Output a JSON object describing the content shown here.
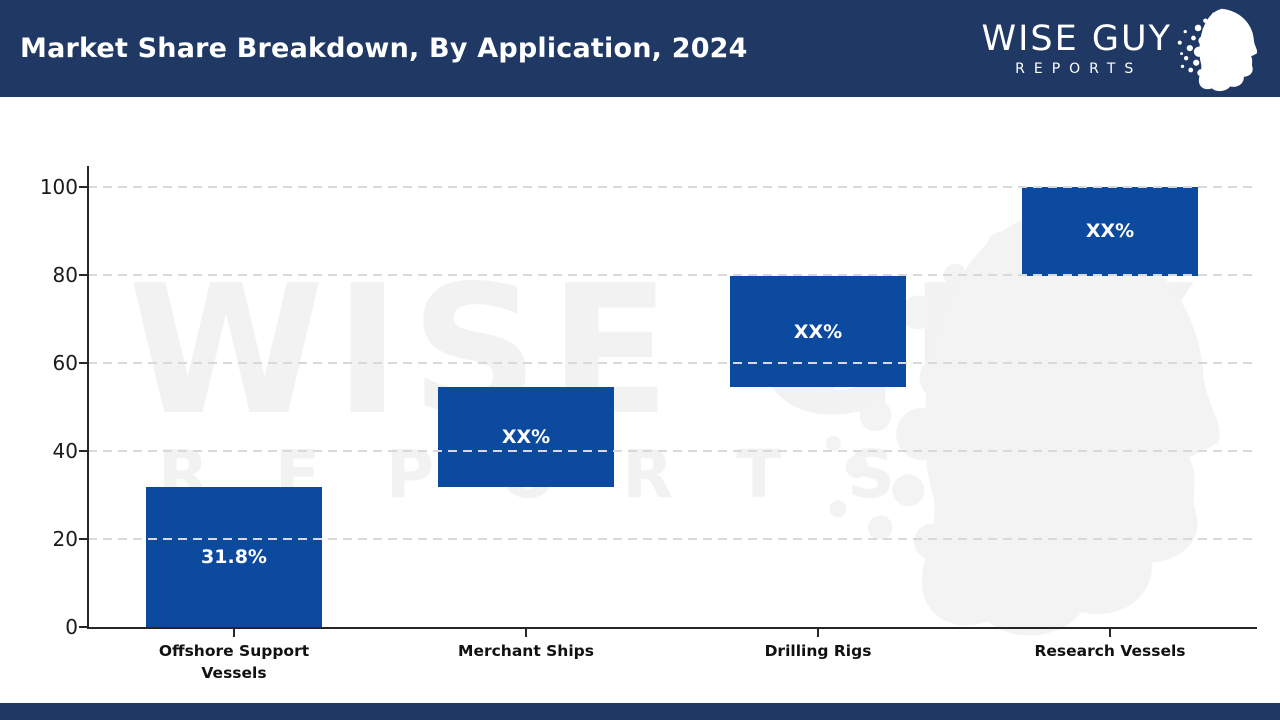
{
  "header": {
    "title": "Market Share Breakdown, By Application, 2024",
    "logo": {
      "line1": "WISE GUY",
      "line2": "REPORTS"
    }
  },
  "watermark": {
    "line1": "WISE GUY",
    "line2": "REPORTS"
  },
  "colors": {
    "header_bg": "#1F3864",
    "bar_fill": "#0B4A9F",
    "bar_label_text": "#FFFFFF",
    "axis": "#262626",
    "gridline": "#D9D9D9",
    "watermark": "#F2F2F2",
    "title_text": "#FFFFFF"
  },
  "chart_data": {
    "type": "bar",
    "subtype": "waterfall",
    "title": "Market Share Breakdown, By Application, 2024",
    "categories": [
      "Offshore Support Vessels",
      "Merchant Ships",
      "Drilling Rigs",
      "Research Vessels"
    ],
    "bars": [
      {
        "category": "Offshore Support Vessels",
        "start": 0,
        "end": 31.8,
        "label": "31.8%"
      },
      {
        "category": "Merchant Ships",
        "start": 31.8,
        "end": 54.5,
        "label": "XX%"
      },
      {
        "category": "Drilling Rigs",
        "start": 54.5,
        "end": 79.8,
        "label": "XX%"
      },
      {
        "category": "Research Vessels",
        "start": 79.8,
        "end": 100,
        "label": "XX%"
      }
    ],
    "xlabel": "",
    "ylabel": "",
    "ylim": [
      0,
      100
    ],
    "yticks": [
      0,
      20,
      40,
      60,
      80,
      100
    ],
    "grid": "horizontal dashed",
    "legend": "none"
  }
}
